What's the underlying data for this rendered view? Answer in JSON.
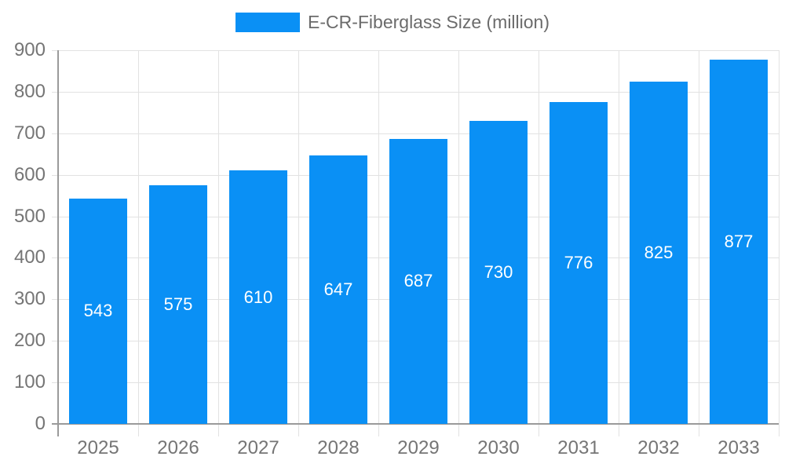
{
  "legend": {
    "label": "E-CR-Fiberglass Size (million)"
  },
  "chart_data": {
    "type": "bar",
    "title": "",
    "categories": [
      "2025",
      "2026",
      "2027",
      "2028",
      "2029",
      "2030",
      "2031",
      "2032",
      "2033"
    ],
    "series": [
      {
        "name": "E-CR-Fiberglass Size (million)",
        "values": [
          543,
          575,
          610,
          647,
          687,
          730,
          776,
          825,
          877
        ]
      }
    ],
    "xlabel": "",
    "ylabel": "",
    "ylim": [
      0,
      900
    ],
    "ytick_step": 100,
    "ytick_labels": [
      "0",
      "100",
      "200",
      "300",
      "400",
      "500",
      "600",
      "700",
      "800",
      "900"
    ],
    "grid": true,
    "legend_position": "top-center",
    "value_labels_position": "inside-center"
  },
  "colors": {
    "bar": "#0a90f5",
    "grid": "#e2e2e2",
    "axis": "#9a9a9a",
    "tick_label": "#757575",
    "legend_text": "#6b6b6b",
    "value_label": "#ffffff",
    "background": "#ffffff"
  }
}
